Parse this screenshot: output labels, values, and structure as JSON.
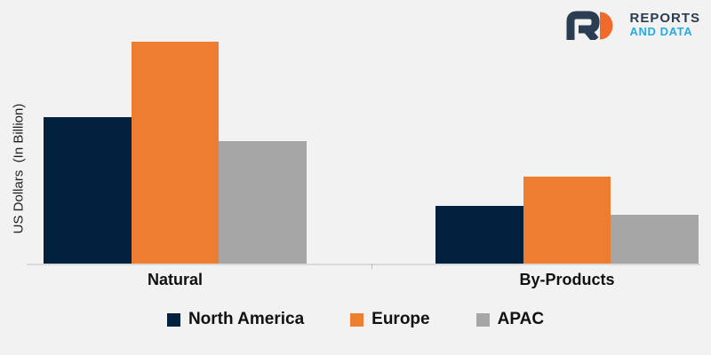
{
  "header": {
    "logo": {
      "line1": "REPORTS",
      "line2": "AND DATA",
      "mark_navy": "#2b3d52",
      "mark_orange": "#f26a2a",
      "text_navy": "#2b3d52",
      "text_cyan": "#29abe2"
    }
  },
  "chart": {
    "y_axis_label": "US Dollars  (In Billion)"
  },
  "chart_data": {
    "type": "bar",
    "title": "",
    "xlabel": "",
    "ylabel": "US Dollars  (In Billion)",
    "categories": [
      "Natural",
      "By-Products"
    ],
    "series": [
      {
        "name": "North America",
        "color": "#02213e",
        "values": [
          6.6,
          2.6
        ]
      },
      {
        "name": "Europe",
        "color": "#ed7d31",
        "values": [
          10.0,
          3.9
        ]
      },
      {
        "name": "APAC",
        "color": "#a6a6a6",
        "values": [
          5.5,
          2.2
        ]
      }
    ],
    "ylim": [
      0,
      10.4
    ],
    "value_axis_visible": false,
    "grid": false,
    "legend_position": "bottom",
    "background": "#f2f2f2",
    "axis_line_color": "#d9d9d9"
  }
}
